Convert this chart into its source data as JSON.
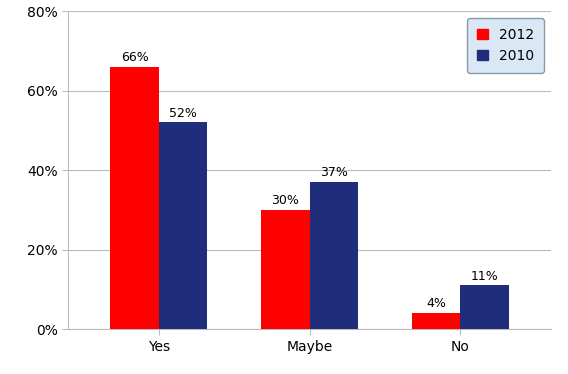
{
  "categories": [
    "Yes",
    "Maybe",
    "No"
  ],
  "values_2012": [
    0.66,
    0.3,
    0.04
  ],
  "values_2010": [
    0.52,
    0.37,
    0.11
  ],
  "labels_2012": [
    "66%",
    "30%",
    "4%"
  ],
  "labels_2010": [
    "52%",
    "37%",
    "11%"
  ],
  "color_2012": "#FF0000",
  "color_2010": "#1F2D7B",
  "legend_labels": [
    "2012",
    "2010"
  ],
  "ylim": [
    0,
    0.8
  ],
  "yticks": [
    0.0,
    0.2,
    0.4,
    0.6,
    0.8
  ],
  "ytick_labels": [
    "0%",
    "20%",
    "40%",
    "60%",
    "80%"
  ],
  "bar_width": 0.32,
  "legend_facecolor": "#DAE8F5",
  "legend_edgecolor": "#8899AA",
  "background_color": "#FFFFFF",
  "grid_color": "#BBBBBB"
}
